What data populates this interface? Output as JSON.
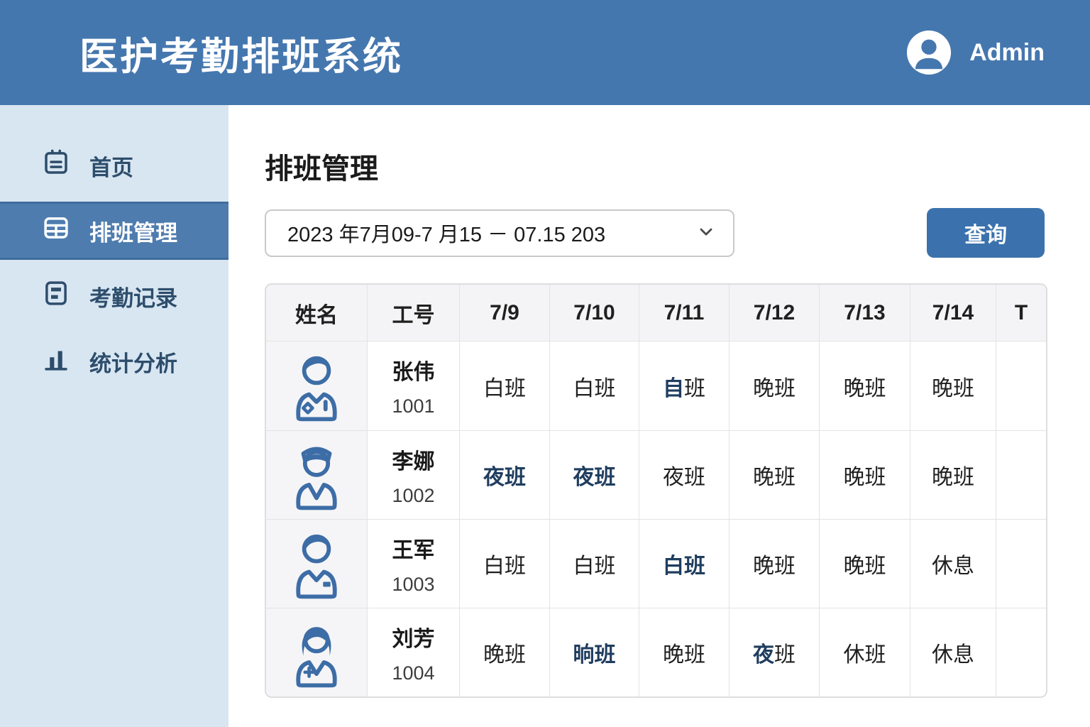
{
  "header": {
    "title": "医护考勤排班系统",
    "user": "Admin"
  },
  "sidebar": {
    "items": [
      {
        "label": "首页",
        "icon": "home-icon",
        "selected": false
      },
      {
        "label": "排班管理",
        "icon": "schedule-grid-icon",
        "selected": true
      },
      {
        "label": "考勤记录",
        "icon": "records-list-icon",
        "selected": false
      },
      {
        "label": "统计分析",
        "icon": "bar-chart-icon",
        "selected": false
      }
    ]
  },
  "main": {
    "page_title": "排班管理",
    "week_select": {
      "value": "2023 年7月09-7 月15  － 07.15  203"
    },
    "query_button": "查询"
  },
  "table": {
    "columns": [
      "姓名",
      "工号",
      "7/9",
      "7/10",
      "7/11",
      "7/12",
      "7/13",
      "7/14",
      "T"
    ],
    "rows": [
      {
        "name": "张伟",
        "id": "1001",
        "avatar": "doctor-male",
        "shifts": [
          [
            [
              "白班",
              "d"
            ]
          ],
          [
            [
              "白班",
              "d"
            ]
          ],
          [
            [
              "自",
              "b"
            ],
            [
              "班",
              "d"
            ]
          ],
          [
            [
              "晚班",
              "d"
            ]
          ],
          [
            [
              "晚班",
              "d"
            ]
          ],
          [
            [
              "晚班",
              "d"
            ]
          ],
          []
        ]
      },
      {
        "name": "李娜",
        "id": "1002",
        "avatar": "nurse-cap",
        "shifts": [
          [
            [
              "夜班",
              "b"
            ]
          ],
          [
            [
              "夜班",
              "b"
            ]
          ],
          [
            [
              "夜班",
              "d"
            ]
          ],
          [
            [
              "晚班",
              "d"
            ]
          ],
          [
            [
              "晚班",
              "d"
            ]
          ],
          [
            [
              "晚班",
              "d"
            ]
          ],
          []
        ]
      },
      {
        "name": "王军",
        "id": "1003",
        "avatar": "male-staff",
        "shifts": [
          [
            [
              "白班",
              "d"
            ]
          ],
          [
            [
              "白班",
              "d"
            ]
          ],
          [
            [
              "白班",
              "b"
            ]
          ],
          [
            [
              "晚班",
              "d"
            ]
          ],
          [
            [
              "晚班",
              "d"
            ]
          ],
          [
            [
              "休息",
              "d"
            ]
          ],
          []
        ]
      },
      {
        "name": "刘芳",
        "id": "1004",
        "avatar": "female-nurse",
        "shifts": [
          [
            [
              "晚班",
              "d"
            ]
          ],
          [
            [
              "晌班",
              "b"
            ]
          ],
          [
            [
              "晚班",
              "d"
            ]
          ],
          [
            [
              "夜",
              "b"
            ],
            [
              "班",
              "d"
            ]
          ],
          [
            [
              "休班",
              "d"
            ]
          ],
          [
            [
              "休息",
              "d"
            ]
          ],
          []
        ]
      }
    ]
  },
  "colors": {
    "header_blue": "#4577af",
    "sidebar_bg": "#d8e6f2",
    "sidebar_selected": "#4e7cae",
    "button_blue": "#3b72ad",
    "shift_highlight_blue": "#1f3d5f",
    "avatar_line_blue": "#3d6da6"
  }
}
